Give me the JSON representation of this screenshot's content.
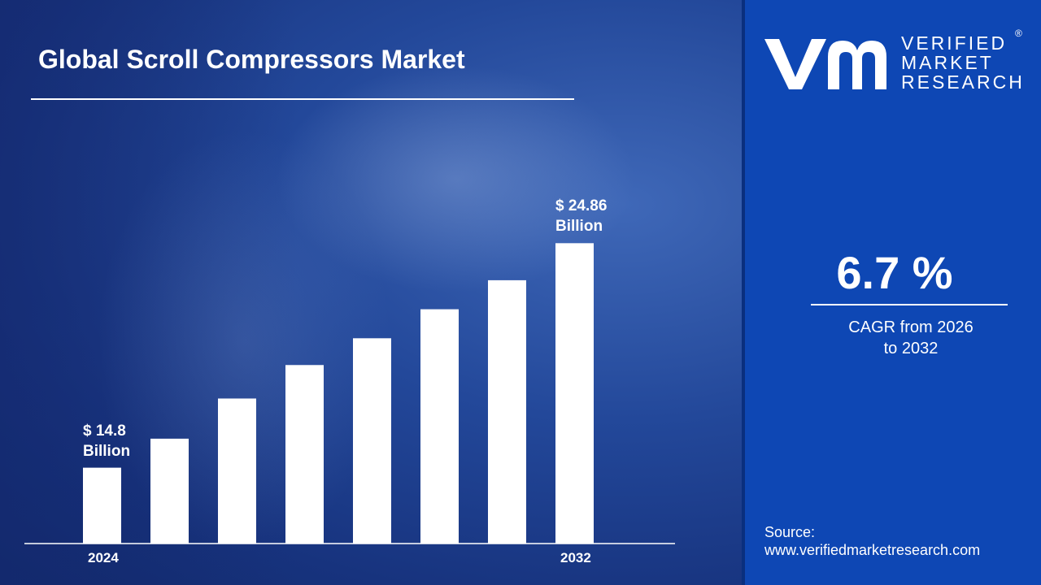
{
  "chart_data": {
    "type": "bar",
    "title": "Global Scroll Compressors Market",
    "categories": [
      "2024",
      null,
      null,
      null,
      null,
      null,
      null,
      "2032"
    ],
    "values": [
      14.8,
      16.1,
      17.9,
      19.4,
      20.6,
      21.9,
      23.2,
      24.86
    ],
    "value_labels": [
      "$ 14.8 Billion",
      null,
      null,
      null,
      null,
      null,
      null,
      "$ 24.86 Billion"
    ],
    "color": "#ffffff",
    "ylim": [
      11.4,
      26
    ]
  },
  "sidebar": {
    "logo": [
      "VERIFIED",
      "MARKET",
      "RESEARCH"
    ],
    "registered": "®",
    "cagr": "6.7 %",
    "cagr_label": "CAGR from 2026 to 2032",
    "source_label": "Source:",
    "source_url": "www.verifiedmarketresearch.com"
  }
}
